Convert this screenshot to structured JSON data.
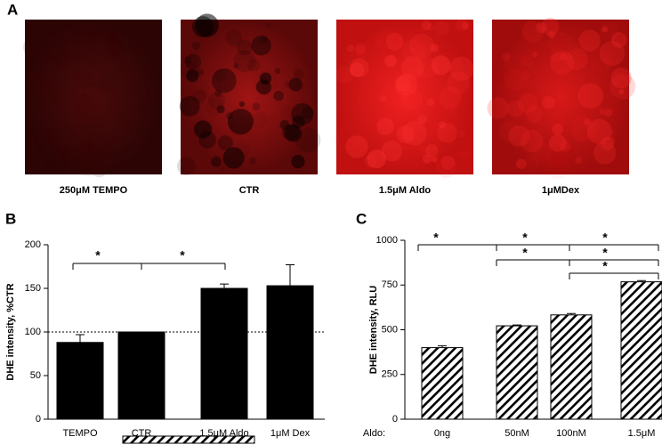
{
  "figure": {
    "panel_labels": [
      "A",
      "B",
      "C"
    ],
    "images": [
      {
        "caption": "250μM TEMPO"
      },
      {
        "caption": "CTR"
      },
      {
        "caption": "1.5μM Aldo"
      },
      {
        "caption": "1μMDex"
      }
    ]
  },
  "chart_data": [
    {
      "type": "bar",
      "ylabel": "DHE intensity, %CTR",
      "categories": [
        "TEMPO",
        "CTR",
        "1.5μM Aldo",
        "1μM Dex"
      ],
      "values": [
        88,
        100,
        150,
        153
      ],
      "errors": [
        9,
        0,
        5,
        24
      ],
      "color": "#000000",
      "bar_style": "solid",
      "hline": 100,
      "ylim": [
        0,
        200
      ],
      "yticks": [
        0,
        50,
        100,
        150,
        200
      ],
      "annotations": [
        "*",
        "*"
      ]
    },
    {
      "type": "bar",
      "ylabel": "DHE intensity, RLU",
      "xlabel": "Aldo:",
      "categories": [
        "0ng",
        "50nM",
        "100nM",
        "1.5μM"
      ],
      "values": [
        400,
        522,
        583,
        768
      ],
      "errors": [
        10,
        5,
        8,
        7
      ],
      "color": "#000000",
      "bar_style": "hatched",
      "ylim": [
        0,
        1000
      ],
      "yticks": [
        0,
        250,
        500,
        750,
        1000
      ],
      "annotations": [
        "*",
        "*",
        "*",
        "*",
        "*",
        "*"
      ]
    }
  ]
}
